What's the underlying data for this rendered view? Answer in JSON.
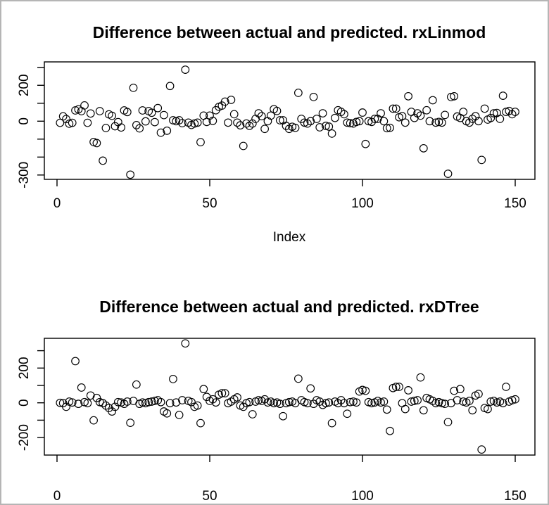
{
  "window": {
    "background": "#ffffff",
    "border_color": "#b5b5b5",
    "point_color": "#000000"
  },
  "chart_data": [
    {
      "type": "scatter",
      "title": "Difference between actual and predicted. rxLinmod",
      "xlabel": "Index",
      "ylabel": "",
      "x": "index 1..150",
      "xlim": [
        -5,
        156
      ],
      "ylim": [
        -320,
        310
      ],
      "grid": false,
      "legend": "none",
      "marker": "open-circle",
      "x_ticks": [
        0,
        50,
        100,
        150
      ],
      "y_ticks": [
        300,
        200,
        100,
        0,
        -100,
        -200,
        -300
      ],
      "y_tick_labels_shown": [
        "200",
        "0",
        "-300"
      ],
      "values": [
        -9,
        27,
        12,
        -14,
        -9,
        60,
        66,
        56,
        88,
        -9,
        43,
        -116,
        -122,
        56,
        -220,
        -38,
        38,
        30,
        -28,
        -5,
        -35,
        60,
        51,
        -298,
        186,
        -22,
        -40,
        60,
        -1,
        56,
        47,
        -5,
        73,
        -64,
        34,
        -53,
        196,
        5,
        0,
        5,
        -11,
        287,
        -8,
        -21,
        -13,
        -8,
        -117,
        31,
        -4,
        31,
        2,
        61,
        80,
        87,
        109,
        -8,
        119,
        39,
        -8,
        -23,
        -138,
        -13,
        -26,
        -13,
        13,
        44,
        28,
        -43,
        0,
        31,
        67,
        57,
        5,
        5,
        -26,
        -43,
        -31,
        -37,
        158,
        13,
        -8,
        -13,
        0,
        135,
        13,
        -34,
        44,
        -26,
        -30,
        -69,
        18,
        61,
        52,
        39,
        -8,
        -11,
        -13,
        -4,
        0,
        48,
        -127,
        0,
        -4,
        13,
        13,
        44,
        0,
        -39,
        -37,
        70,
        70,
        22,
        28,
        -8,
        139,
        52,
        18,
        44,
        31,
        -151,
        61,
        0,
        117,
        -8,
        -4,
        -8,
        35,
        -293,
        135,
        139,
        26,
        18,
        52,
        0,
        -8,
        13,
        28,
        0,
        -216,
        70,
        9,
        18,
        44,
        46,
        13,
        142,
        52,
        57,
        39,
        52
      ]
    },
    {
      "type": "scatter",
      "title": "Difference between actual and predicted. rxDTree",
      "xlabel": "",
      "ylabel": "",
      "x": "index 1..150",
      "xlim": [
        -5,
        156
      ],
      "ylim": [
        -300,
        370
      ],
      "grid": false,
      "legend": "none",
      "marker": "open-circle",
      "x_ticks": [
        0,
        50,
        100,
        150
      ],
      "y_ticks": [
        300,
        200,
        100,
        0,
        -100,
        -200
      ],
      "y_tick_labels_shown": [
        "200",
        "0",
        "-200"
      ],
      "values": [
        0,
        -2,
        -23,
        7,
        2,
        240,
        -6,
        88,
        4,
        -2,
        42,
        -101,
        28,
        4,
        -2,
        -16,
        -30,
        -50,
        -23,
        4,
        2,
        -6,
        7,
        -115,
        11,
        105,
        -6,
        2,
        -2,
        4,
        7,
        11,
        15,
        4,
        -50,
        -61,
        -2,
        137,
        2,
        -70,
        15,
        342,
        11,
        4,
        -23,
        -16,
        -117,
        79,
        34,
        11,
        20,
        2,
        47,
        55,
        55,
        -2,
        7,
        20,
        31,
        -16,
        -23,
        -2,
        4,
        -66,
        7,
        15,
        11,
        20,
        2,
        7,
        -2,
        2,
        -6,
        -77,
        -2,
        4,
        7,
        -2,
        139,
        15,
        4,
        -2,
        83,
        -6,
        15,
        7,
        -12,
        -2,
        2,
        -117,
        7,
        -2,
        15,
        -2,
        -63,
        4,
        7,
        2,
        65,
        74,
        69,
        4,
        -2,
        2,
        11,
        2,
        7,
        -39,
        -162,
        85,
        92,
        92,
        -2,
        -36,
        72,
        7,
        11,
        15,
        146,
        -43,
        28,
        20,
        11,
        -2,
        4,
        -2,
        -6,
        -111,
        -2,
        69,
        15,
        79,
        7,
        2,
        11,
        -43,
        42,
        51,
        -269,
        -30,
        -36,
        7,
        11,
        2,
        7,
        -2,
        92,
        7,
        15,
        20
      ]
    }
  ]
}
